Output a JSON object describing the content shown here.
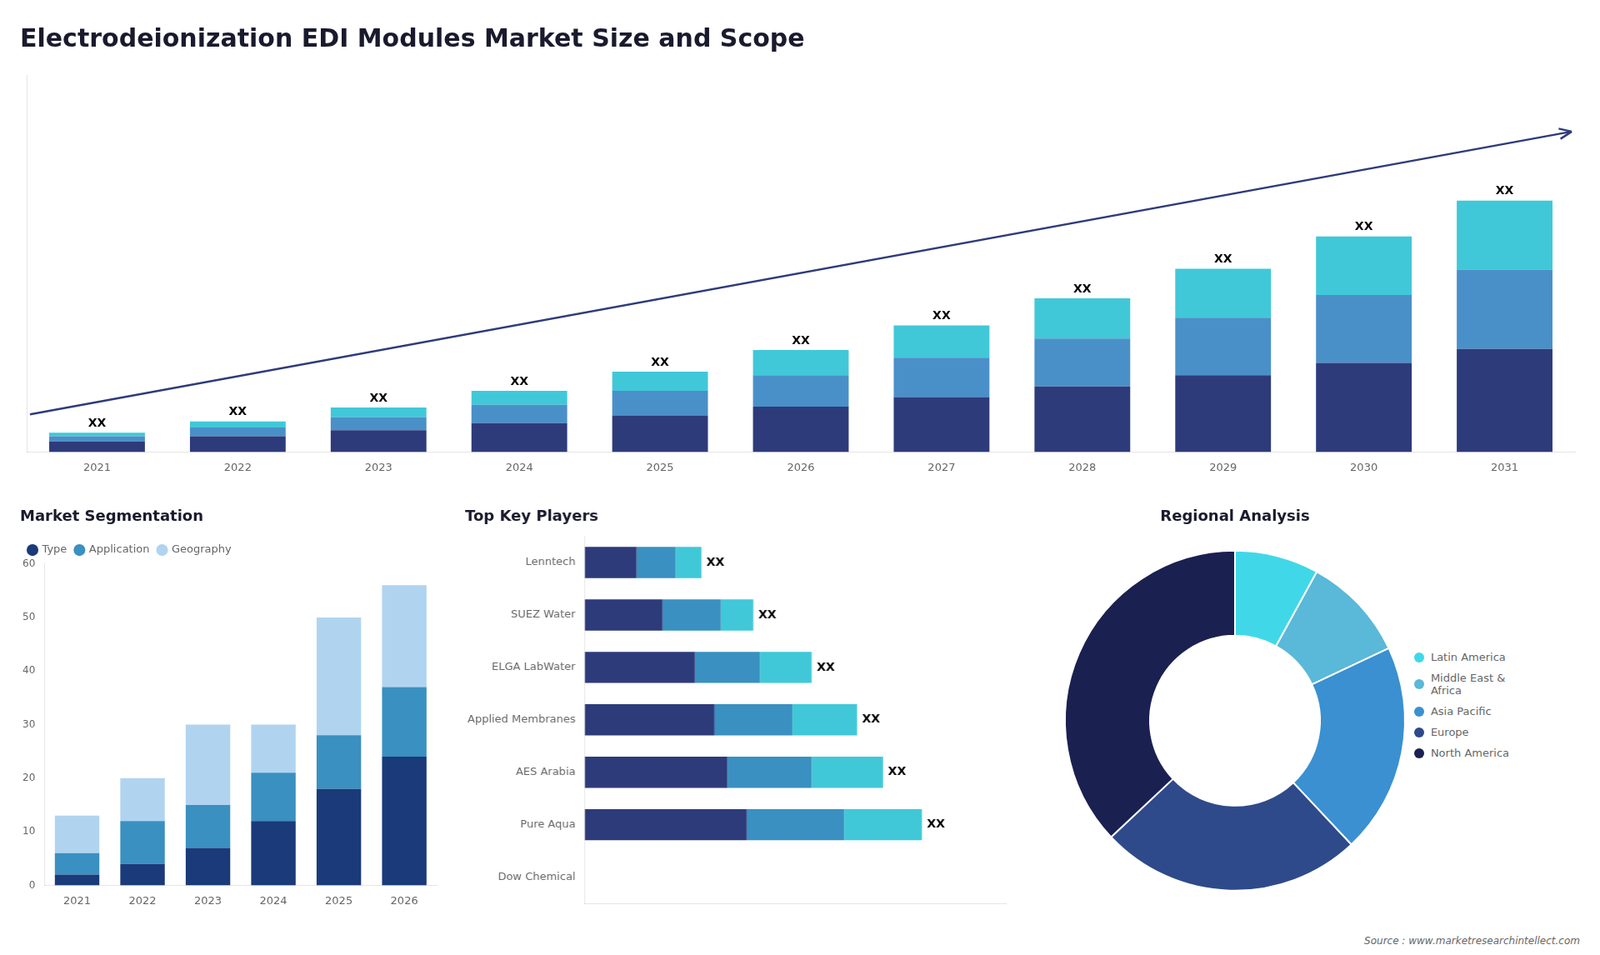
{
  "chart_data": [
    {
      "type": "bar",
      "title": "Electrodeionization EDI Modules Market Size and Scope",
      "categories": [
        "2021",
        "2022",
        "2023",
        "2024",
        "2025",
        "2026",
        "2027",
        "2028",
        "2029",
        "2030",
        "2031"
      ],
      "series": [
        {
          "color": "#2e3b7a",
          "values": [
            1.2,
            1.8,
            2.5,
            3.3,
            4.2,
            5.2,
            6.3,
            7.5,
            8.8,
            10.2,
            11.8
          ]
        },
        {
          "color": "#4a90c8",
          "values": [
            0.6,
            1.0,
            1.5,
            2.1,
            2.8,
            3.6,
            4.5,
            5.5,
            6.6,
            7.8,
            9.1
          ]
        },
        {
          "color": "#40c8d8",
          "values": [
            0.4,
            0.7,
            1.1,
            1.6,
            2.2,
            2.9,
            3.7,
            4.6,
            5.6,
            6.7,
            7.9
          ]
        }
      ],
      "stacked": true,
      "value_labels": [
        "XX",
        "XX",
        "XX",
        "XX",
        "XX",
        "XX",
        "XX",
        "XX",
        "XX",
        "XX",
        "XX"
      ],
      "ylim": [
        0,
        43.2
      ],
      "tick_labels": "x",
      "grid": false
    },
    {
      "type": "bar",
      "title": "Market Segmentation",
      "categories": [
        "2021",
        "2022",
        "2023",
        "2024",
        "2025",
        "2026"
      ],
      "series": [
        {
          "name": "Type",
          "color": "#1a3a7a",
          "values": [
            2,
            4,
            7,
            12,
            18,
            24
          ]
        },
        {
          "name": "Application",
          "color": "#3a90c0",
          "values": [
            4,
            8,
            8,
            9,
            10,
            13
          ]
        },
        {
          "name": "Geography",
          "color": "#b0d4f0",
          "values": [
            7,
            8,
            15,
            9,
            22,
            19
          ]
        }
      ],
      "stacked": true,
      "ylim": [
        0,
        60
      ],
      "yticks": [
        0,
        10,
        20,
        30,
        40,
        50,
        60
      ],
      "grid": false,
      "legend": "upper left"
    },
    {
      "type": "bar",
      "orientation": "horizontal",
      "title": "Top Key Players",
      "categories": [
        "Dow Chemical",
        "Pure Aqua",
        "AES Arabia",
        "Applied Membranes",
        "ELGA LabWater",
        "SUEZ Water",
        "Lenntech"
      ],
      "series": [
        {
          "color": "#2e3b7a",
          "values": [
            0,
            2.5,
            2.2,
            2.0,
            1.7,
            1.2,
            0.8
          ]
        },
        {
          "color": "#3a90c0",
          "values": [
            0,
            1.5,
            1.3,
            1.2,
            1.0,
            0.9,
            0.6
          ]
        },
        {
          "color": "#40c8d8",
          "values": [
            0,
            1.2,
            1.1,
            1.0,
            0.8,
            0.5,
            0.4
          ]
        }
      ],
      "stacked": true,
      "value_labels": [
        null,
        "XX",
        "XX",
        "XX",
        "XX",
        "XX",
        "XX"
      ],
      "xlim": [
        0,
        6.5
      ],
      "tick_labels": "y",
      "grid": false
    },
    {
      "type": "doughnut",
      "title": "Regional Analysis",
      "categories": [
        "Latin America",
        "Middle East &\nAfrica",
        "Asia Pacific",
        "Europe",
        "North America"
      ],
      "values": [
        8,
        10,
        20,
        25,
        37
      ],
      "colors": [
        "#40d8e8",
        "#5ab8d8",
        "#3a90d0",
        "#2e4a8a",
        "#1a2050"
      ],
      "legend": "right",
      "annotations": [
        "Source : www.marketresearchintellect.com"
      ]
    }
  ]
}
